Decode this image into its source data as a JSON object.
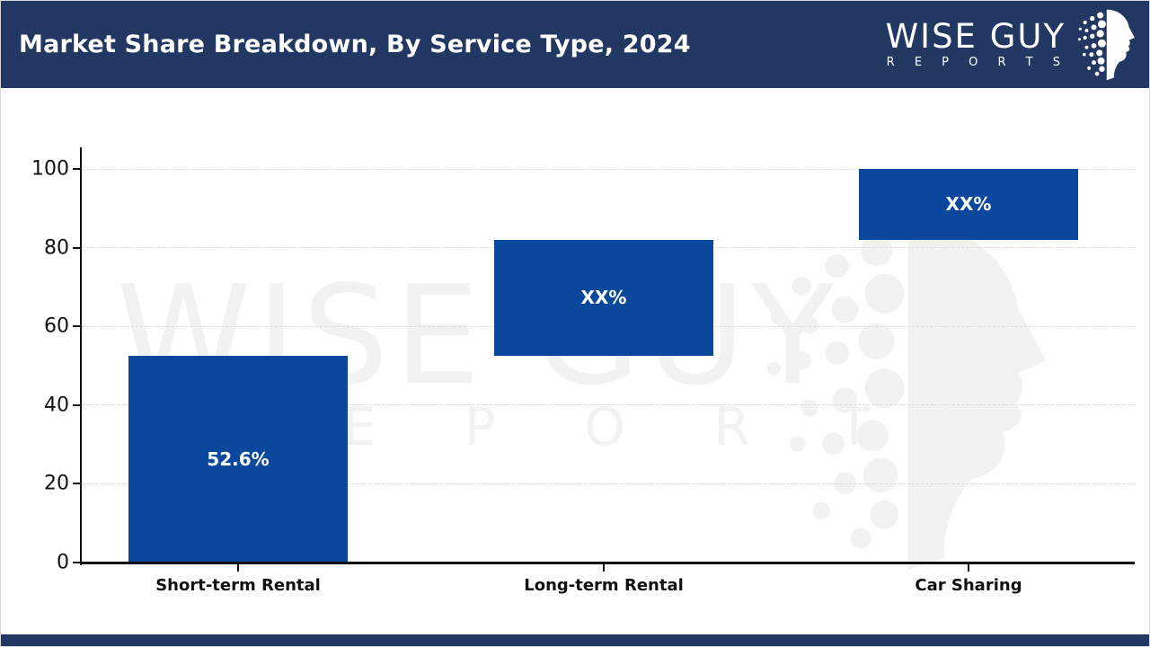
{
  "header": {
    "title": "Market Share Breakdown, By Service Type, 2024",
    "logo": {
      "line1": "WISE GUY",
      "line2": "R E P O R T S"
    }
  },
  "watermark": {
    "line1": "WISE GUY",
    "line2": "R E P O R T S"
  },
  "colors": {
    "header_bg": "#223862",
    "footer_bg": "#223862",
    "bar": "#0a489d",
    "grid": "#d9d9d9",
    "axis": "#111111",
    "bar_label": "#ffffff",
    "watermark": "#f2f2f2"
  },
  "chart_data": {
    "type": "bar",
    "subtype": "waterfall",
    "title": "Market Share Breakdown, By Service Type, 2024",
    "categories": [
      "Short-term Rental",
      "Long-term Rental",
      "Car Sharing"
    ],
    "segments": [
      {
        "category": "Short-term Rental",
        "start": 0,
        "end": 52.6,
        "label": "52.6%"
      },
      {
        "category": "Long-term Rental",
        "start": 52.6,
        "end": 82.0,
        "label": "XX%"
      },
      {
        "category": "Car Sharing",
        "start": 82.0,
        "end": 100.0,
        "label": "XX%"
      }
    ],
    "yticks": [
      0,
      20,
      40,
      60,
      80,
      100
    ],
    "ylim": [
      0,
      105
    ],
    "xlabel": "",
    "ylabel": "",
    "grid": "horizontal-dashed",
    "legend": "none"
  }
}
